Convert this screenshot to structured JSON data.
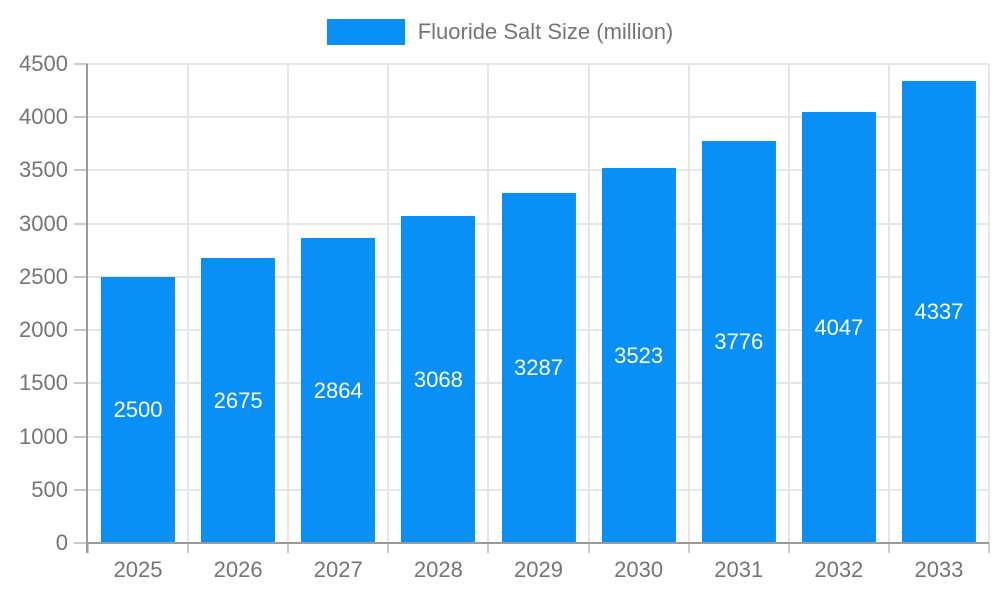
{
  "chart_data": {
    "type": "bar",
    "title": "",
    "legend": "Fluoride Salt Size (million)",
    "legend_position": "top-center",
    "categories": [
      "2025",
      "2026",
      "2027",
      "2028",
      "2029",
      "2030",
      "2031",
      "2032",
      "2033"
    ],
    "values": [
      2500,
      2675,
      2864,
      3068,
      3287,
      3523,
      3776,
      4047,
      4337
    ],
    "xlabel": "",
    "ylabel": "",
    "ylim": [
      0,
      4500
    ],
    "yticks": [
      0,
      500,
      1000,
      1500,
      2000,
      2500,
      3000,
      3500,
      4000,
      4500
    ],
    "grid": true,
    "value_label_position": "inside-center",
    "colors": {
      "bar": "#0990F6",
      "grid": "#E6E6E6",
      "axis": "#9A9A9A",
      "tick": "#C9C9C9",
      "label": "#757575",
      "value": "#FFFFFF",
      "bg": "#FFFFFF"
    }
  }
}
